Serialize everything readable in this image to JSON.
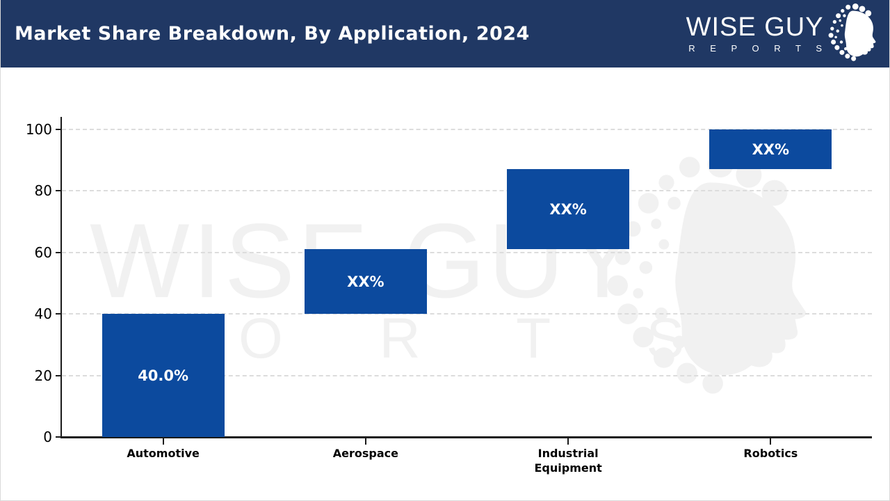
{
  "header": {
    "title": "Market Share Breakdown, By Application, 2024",
    "bg_color": "#203864",
    "logo": {
      "line1": "WISE GUY",
      "line2": "R E P O R T S"
    }
  },
  "watermark": {
    "line1": "WISE GUY",
    "line2": "P O R T S"
  },
  "chart_data": {
    "type": "bar",
    "variant": "waterfall",
    "title": "Market Share Breakdown, By Application, 2024",
    "categories": [
      "Automotive",
      "Aerospace",
      "Industrial Equipment",
      "Robotics"
    ],
    "segments": [
      {
        "category": "Automotive",
        "start": 0,
        "end": 40,
        "label": "40.0%"
      },
      {
        "category": "Aerospace",
        "start": 40,
        "end": 61,
        "label": "XX%"
      },
      {
        "category": "Industrial Equipment",
        "start": 61,
        "end": 87,
        "label": "XX%"
      },
      {
        "category": "Robotics",
        "start": 87,
        "end": 100,
        "label": "XX%"
      }
    ],
    "ylim": [
      0,
      100
    ],
    "yticks": [
      0,
      20,
      40,
      60,
      80,
      100
    ],
    "xlabel": "",
    "ylabel": "",
    "grid": "horizontal-dashed",
    "legend": "none",
    "bar_color": "#0c4a9e",
    "bar_label_color": "#ffffff",
    "axis_color": "#1a1a1a"
  }
}
